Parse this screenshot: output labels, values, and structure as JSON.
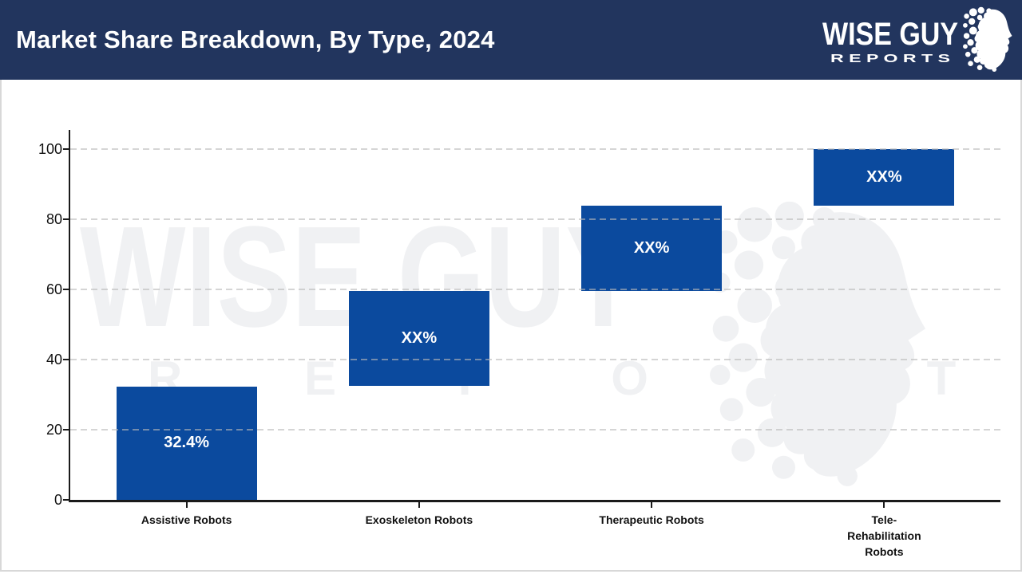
{
  "header": {
    "title": "Market Share Breakdown, By Type, 2024",
    "logo": {
      "line1": "WISE GUY",
      "line2": "R E P O R T S"
    }
  },
  "watermark": {
    "line1": "WISE GUY",
    "line2": "R E P O R T S"
  },
  "colors": {
    "header_bg": "#22355e",
    "bar_blue": "#0b4a9e",
    "grid_gray": "#c9c9c9",
    "frame_gray": "#d8d8d8",
    "watermark_gray": "#f0f1f3",
    "axis_black": "#1a1a1a",
    "title_white": "#ffffff"
  },
  "chart_data": {
    "type": "bar",
    "variant": "waterfall",
    "title": "Market Share Breakdown, By Type, 2024",
    "xlabel": "",
    "ylabel": "",
    "ylim": [
      0,
      105.5
    ],
    "yticks": [
      0,
      20,
      40,
      60,
      80,
      100
    ],
    "grid": "horizontal dashed",
    "legend": "none",
    "categories": [
      {
        "name": "Assistive Robots",
        "lines": [
          "Assistive Robots"
        ]
      },
      {
        "name": "Exoskeleton Robots",
        "lines": [
          "Exoskeleton Robots"
        ]
      },
      {
        "name": "Therapeutic Robots",
        "lines": [
          "Therapeutic Robots"
        ]
      },
      {
        "name": "Tele-Rehabilitation Robots",
        "lines": [
          "Tele-",
          "Rehabilitation",
          "Robots"
        ]
      }
    ],
    "segments": [
      {
        "category": "Assistive Robots",
        "start": 0,
        "end": 32.4,
        "value": 32.4,
        "label": "32.4%"
      },
      {
        "category": "Exoskeleton Robots",
        "start": 32.4,
        "end": 59.6,
        "value": 27.2,
        "label": "XX%"
      },
      {
        "category": "Therapeutic Robots",
        "start": 59.6,
        "end": 83.9,
        "value": 24.3,
        "label": "XX%"
      },
      {
        "category": "Tele-Rehabilitation Robots",
        "start": 83.9,
        "end": 100,
        "value": 16.1,
        "label": "XX%"
      }
    ]
  }
}
